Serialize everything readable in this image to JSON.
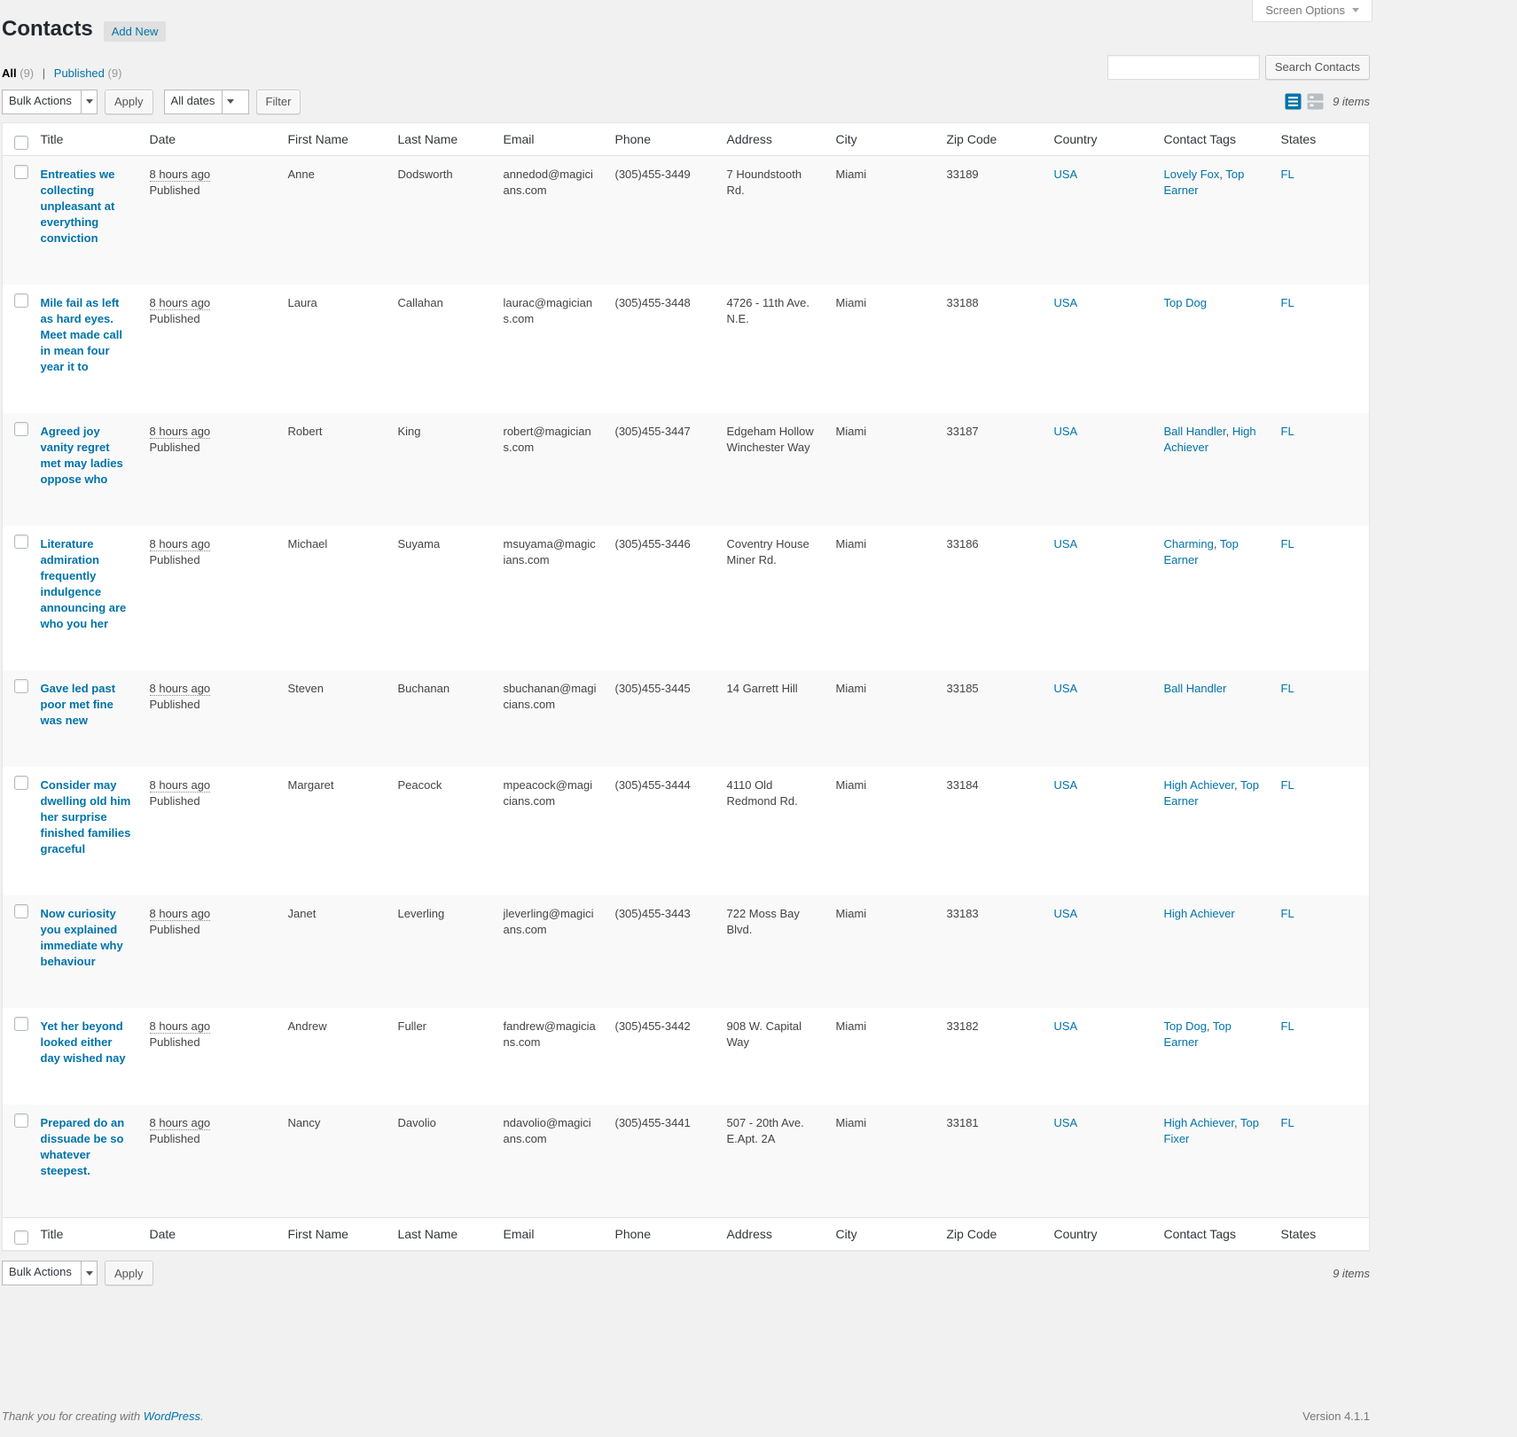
{
  "page": {
    "title": "Contacts",
    "add_new_label": "Add New",
    "screen_options_label": "Screen Options"
  },
  "filters": {
    "all_label": "All",
    "all_count": "(9)",
    "separator": "|",
    "published_label": "Published",
    "published_count": "(9)"
  },
  "toolbar": {
    "bulk_actions_label": "Bulk Actions",
    "apply_label": "Apply",
    "dates_label": "All dates",
    "filter_label": "Filter",
    "search_button_label": "Search Contacts",
    "items_count": "9 items"
  },
  "colors": {
    "accent": "#0073aa",
    "page_bg": "#f1f1f1",
    "row_alt_bg": "#f9f9f9",
    "active_view_icon": "#0073aa",
    "inactive_view_icon": "#b4b9be"
  },
  "table": {
    "columns": [
      {
        "key": "title",
        "label": "Title"
      },
      {
        "key": "date",
        "label": "Date"
      },
      {
        "key": "first_name",
        "label": "First Name"
      },
      {
        "key": "last_name",
        "label": "Last Name"
      },
      {
        "key": "email",
        "label": "Email"
      },
      {
        "key": "phone",
        "label": "Phone"
      },
      {
        "key": "address",
        "label": "Address"
      },
      {
        "key": "city",
        "label": "City"
      },
      {
        "key": "zip",
        "label": "Zip Code"
      },
      {
        "key": "country",
        "label": "Country"
      },
      {
        "key": "tags",
        "label": "Contact Tags"
      },
      {
        "key": "states",
        "label": "States"
      }
    ],
    "rows": [
      {
        "title": "Entreaties we collecting unpleasant at everything conviction",
        "date_relative": "8 hours ago",
        "status": "Published",
        "first_name": "Anne",
        "last_name": "Dodsworth",
        "email": "annedod@magicians.com",
        "phone": "(305)455-3449",
        "address": "7 Houndstooth Rd.",
        "city": "Miami",
        "zip": "33189",
        "country": "USA",
        "tags": [
          "Lovely Fox",
          "Top Earner"
        ],
        "states": "FL"
      },
      {
        "title": "Mile fail as left as hard eyes. Meet made call in mean four year it to",
        "date_relative": "8 hours ago",
        "status": "Published",
        "first_name": "Laura",
        "last_name": "Callahan",
        "email": "laurac@magicians.com",
        "phone": "(305)455-3448",
        "address": "4726 - 11th Ave. N.E.",
        "city": "Miami",
        "zip": "33188",
        "country": "USA",
        "tags": [
          "Top Dog"
        ],
        "states": "FL"
      },
      {
        "title": "Agreed joy vanity regret met may ladies oppose who",
        "date_relative": "8 hours ago",
        "status": "Published",
        "first_name": "Robert",
        "last_name": "King",
        "email": "robert@magicians.com",
        "phone": "(305)455-3447",
        "address": "Edgeham Hollow Winchester Way",
        "city": "Miami",
        "zip": "33187",
        "country": "USA",
        "tags": [
          "Ball Handler",
          "High Achiever"
        ],
        "states": "FL"
      },
      {
        "title": "Literature admiration frequently indulgence announcing are who you her",
        "date_relative": "8 hours ago",
        "status": "Published",
        "first_name": "Michael",
        "last_name": "Suyama",
        "email": "msuyama@magicians.com",
        "phone": "(305)455-3446",
        "address": "Coventry House Miner Rd.",
        "city": "Miami",
        "zip": "33186",
        "country": "USA",
        "tags": [
          "Charming",
          "Top Earner"
        ],
        "states": "FL"
      },
      {
        "title": "Gave led past poor met fine was new",
        "date_relative": "8 hours ago",
        "status": "Published",
        "first_name": "Steven",
        "last_name": "Buchanan",
        "email": "sbuchanan@magicians.com",
        "phone": "(305)455-3445",
        "address": "14 Garrett Hill",
        "city": "Miami",
        "zip": "33185",
        "country": "USA",
        "tags": [
          "Ball Handler"
        ],
        "states": "FL"
      },
      {
        "title": "Consider may dwelling old him her surprise finished families graceful",
        "date_relative": "8 hours ago",
        "status": "Published",
        "first_name": "Margaret",
        "last_name": "Peacock",
        "email": "mpeacock@magicians.com",
        "phone": "(305)455-3444",
        "address": "4110 Old Redmond Rd.",
        "city": "Miami",
        "zip": "33184",
        "country": "USA",
        "tags": [
          "High Achiever",
          "Top Earner"
        ],
        "states": "FL"
      },
      {
        "title": "Now curiosity you explained immediate why behaviour",
        "date_relative": "8 hours ago",
        "status": "Published",
        "first_name": "Janet",
        "last_name": "Leverling",
        "email": "jleverling@magicians.com",
        "phone": "(305)455-3443",
        "address": "722 Moss Bay Blvd.",
        "city": "Miami",
        "zip": "33183",
        "country": "USA",
        "tags": [
          "High Achiever"
        ],
        "states": "FL"
      },
      {
        "title": "Yet her beyond looked either day wished nay",
        "date_relative": "8 hours ago",
        "status": "Published",
        "first_name": "Andrew",
        "last_name": "Fuller",
        "email": "fandrew@magicians.com",
        "phone": "(305)455-3442",
        "address": "908 W. Capital Way",
        "city": "Miami",
        "zip": "33182",
        "country": "USA",
        "tags": [
          "Top Dog",
          "Top Earner"
        ],
        "states": "FL"
      },
      {
        "title": "Prepared do an dissuade be so whatever steepest.",
        "date_relative": "8 hours ago",
        "status": "Published",
        "first_name": "Nancy",
        "last_name": "Davolio",
        "email": "ndavolio@magicians.com",
        "phone": "(305)455-3441",
        "address": "507 - 20th Ave. E.Apt. 2A",
        "city": "Miami",
        "zip": "33181",
        "country": "USA",
        "tags": [
          "High Achiever",
          "Top Fixer"
        ],
        "states": "FL"
      }
    ]
  },
  "footer": {
    "thanks_prefix": "Thank you for creating with",
    "wordpress_link_label": "WordPress",
    "thanks_suffix": ".",
    "version": "Version 4.1.1"
  }
}
